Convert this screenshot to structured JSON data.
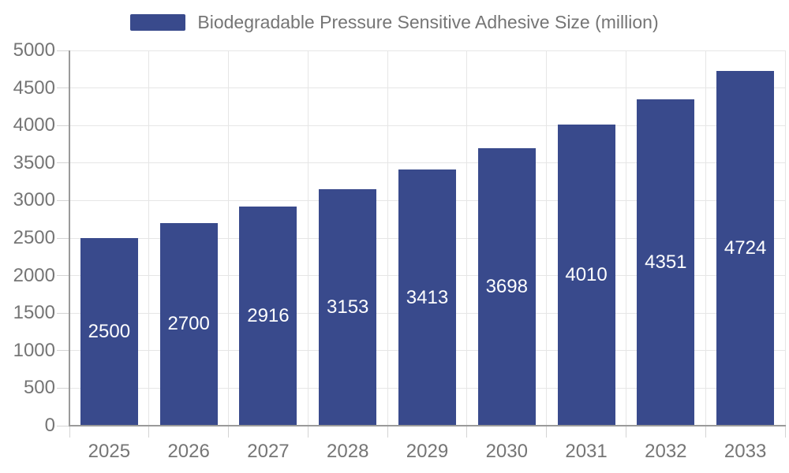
{
  "legend": {
    "label": "Biodegradable Pressure Sensitive Adhesive Size (million)"
  },
  "chart_data": {
    "type": "bar",
    "title": "",
    "categories": [
      "2025",
      "2026",
      "2027",
      "2028",
      "2029",
      "2030",
      "2031",
      "2032",
      "2033"
    ],
    "series": [
      {
        "name": "Biodegradable Pressure Sensitive Adhesive Size (million)",
        "values": [
          2500,
          2700,
          2916,
          3153,
          3413,
          3698,
          4010,
          4351,
          4724
        ]
      }
    ],
    "xlabel": "",
    "ylabel": "",
    "ylim": [
      0,
      5000
    ],
    "yticks": [
      0,
      500,
      1000,
      1500,
      2000,
      2500,
      3000,
      3500,
      4000,
      4500,
      5000
    ],
    "grid": true,
    "legend_position": "top-center",
    "value_labels": "inside-center"
  },
  "colors": {
    "bar": "#394A8C",
    "bar_label": "#ffffff",
    "axis_line": "#9a9a9a",
    "grid_line": "#e6e6e6",
    "tick_line": "#d4d4d4",
    "tick_label": "#757575",
    "legend_text": "#757575",
    "background": "#ffffff"
  }
}
